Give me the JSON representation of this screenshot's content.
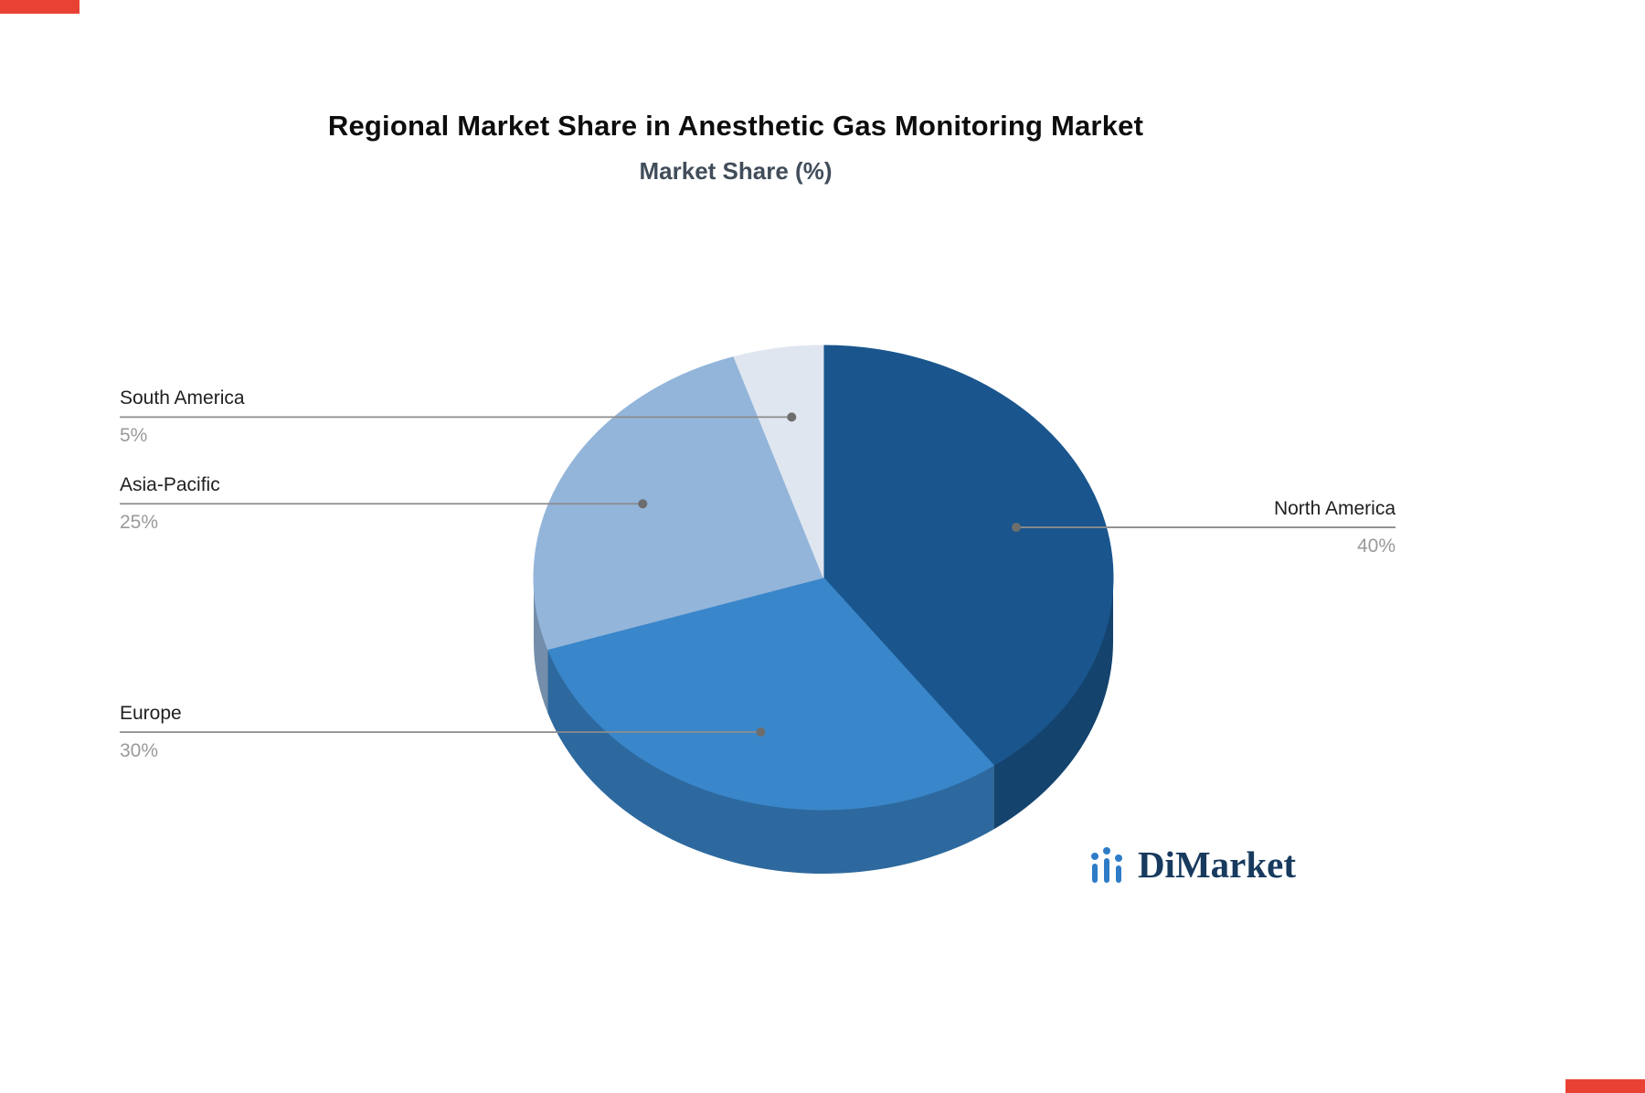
{
  "header": {
    "title": "Regional Market Share in Anesthetic Gas Monitoring Market",
    "subtitle": "Market Share (%)"
  },
  "chart_data": {
    "type": "pie",
    "style": "3d",
    "title": "Regional Market Share in Anesthetic Gas Monitoring Market",
    "subtitle": "Market Share (%)",
    "unit": "%",
    "start_angle": "top",
    "direction": "clockwise",
    "legend": false,
    "segments": [
      {
        "label": "North America",
        "value": 40,
        "display": "40%",
        "color": "#1a568d"
      },
      {
        "label": "Europe",
        "value": 30,
        "display": "30%",
        "color": "#3a86ca"
      },
      {
        "label": "Asia-Pacific",
        "value": 25,
        "display": "25%",
        "color": "#93b5da"
      },
      {
        "label": "South America",
        "value": 5,
        "display": "5%",
        "color": "#dfe6f0"
      }
    ],
    "leader_line_color": "#8c8c8c",
    "leader_dot_color": "#6d6d6d",
    "label_name_color": "#1f1f1f",
    "label_value_color": "#9a9a9a"
  },
  "logo": {
    "text": "DiMarket",
    "icon": "bar-chart-icon",
    "text_color": "#173a5e",
    "icon_color": "#2e7cc8"
  },
  "decorations": {
    "corner_mark_color": "#e94235"
  }
}
